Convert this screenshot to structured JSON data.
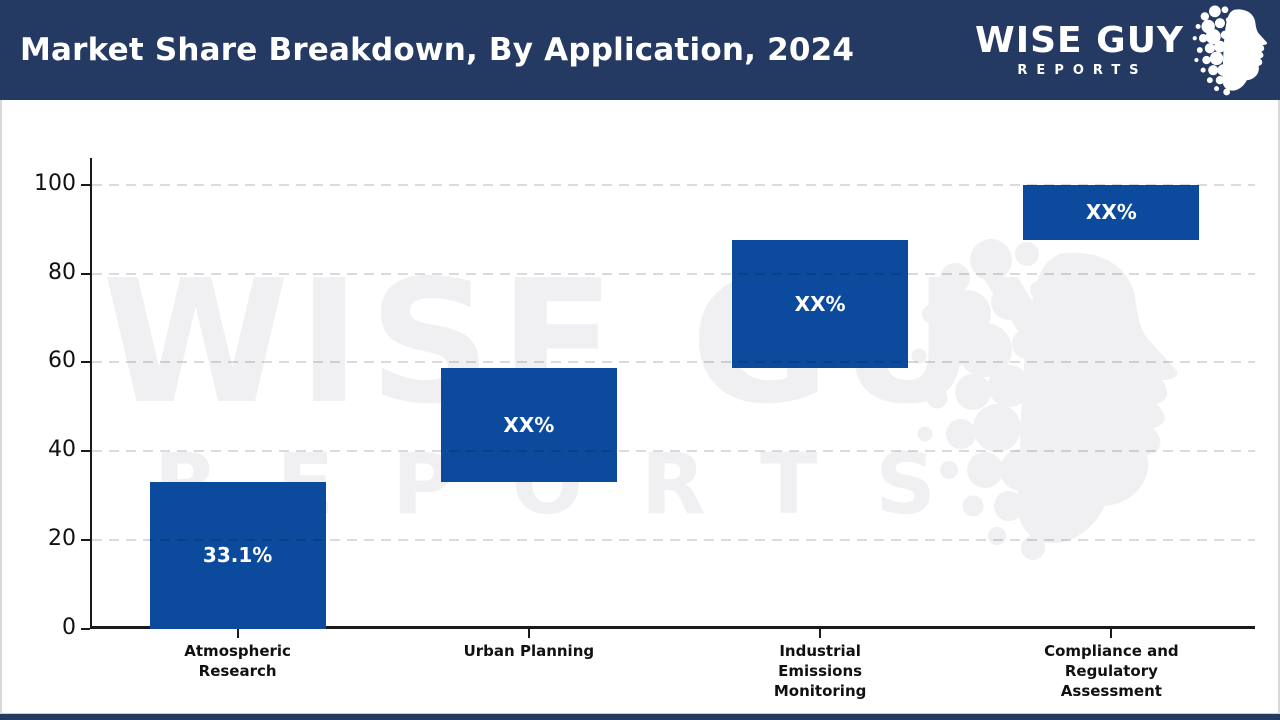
{
  "header": {
    "title": "Market Share Breakdown, By Application, 2024",
    "logo": {
      "line1": "WISE GUY",
      "line2": "REPORTS",
      "icon": "face-dots-icon"
    }
  },
  "watermark": {
    "line1": "WISE GUY",
    "line2": "REPORTS"
  },
  "colors": {
    "header_bg": "#253a63",
    "footer_bg": "#253a63",
    "bar": "#0c4a9e",
    "bar_label_text": "#ffffff",
    "axis": "#1a1a1a",
    "watermark": "#f0f0f2",
    "background": "#ffffff"
  },
  "chart_data": {
    "type": "bar",
    "subtype": "waterfall",
    "title": "Market Share Breakdown, By Application, 2024",
    "categories": [
      "Atmospheric Research",
      "Urban Planning",
      "Industrial Emissions Monitoring",
      "Compliance and Regulatory Assessment"
    ],
    "category_label_lines": [
      [
        "Atmospheric",
        "Research"
      ],
      [
        "Urban Planning"
      ],
      [
        "Industrial",
        "Emissions",
        "Monitoring"
      ],
      [
        "Compliance and",
        "Regulatory",
        "Assessment"
      ]
    ],
    "segments": [
      {
        "category": "Atmospheric Research",
        "start": 0,
        "end": 33.1,
        "label": "33.1%"
      },
      {
        "category": "Urban Planning",
        "start": 33.1,
        "end": 58.7,
        "label": "XX%"
      },
      {
        "category": "Industrial Emissions Monitoring",
        "start": 58.7,
        "end": 87.6,
        "label": "XX%"
      },
      {
        "category": "Compliance and Regulatory Assessment",
        "start": 87.6,
        "end": 100,
        "label": "XX%"
      }
    ],
    "xlabel": "",
    "ylabel": "",
    "ylim": [
      0,
      106
    ],
    "yticks": [
      0,
      20,
      40,
      60,
      80,
      100
    ],
    "grid": "horizontal-dashed",
    "legend": "none",
    "bar_color": "#0c4a9e"
  }
}
